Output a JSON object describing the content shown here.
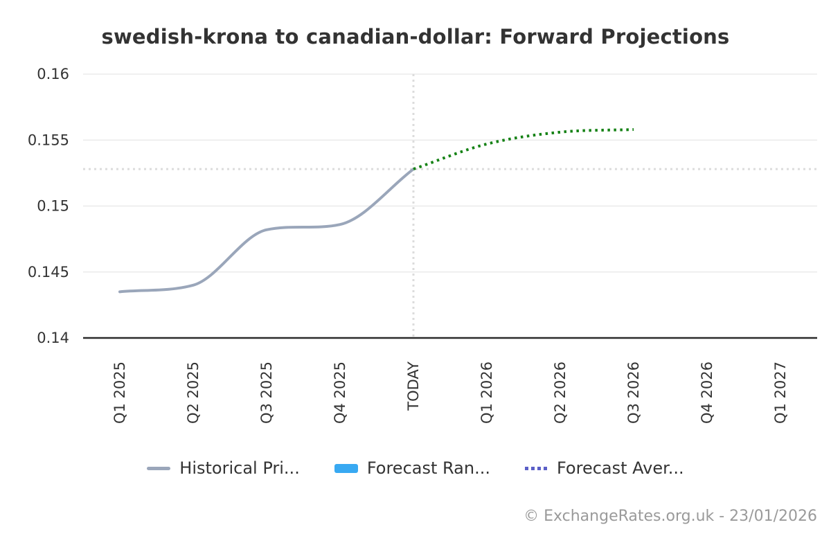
{
  "title": "swedish-krona to canadian-dollar: Forward Projections",
  "footer": {
    "text": "© ExchangeRates.org.uk - 23/01/2026"
  },
  "legend": {
    "position": "bottom",
    "items": [
      {
        "label": "Historical Pri...",
        "swatch": "solid-line",
        "color": "#9aa6ba"
      },
      {
        "label": "Forecast Ran...",
        "swatch": "filled-rect",
        "color": "#38a9f2"
      },
      {
        "label": "Forecast Aver...",
        "swatch": "dotted-line",
        "color": "#5b5fc7"
      }
    ]
  },
  "chart_data": {
    "type": "line",
    "title": "swedish-krona to canadian-dollar: Forward Projections",
    "xlabel": "",
    "ylabel": "",
    "categories": [
      "Q1 2025",
      "Q2 2025",
      "Q3 2025",
      "Q4 2025",
      "TODAY",
      "Q1 2026",
      "Q2 2026",
      "Q3 2026",
      "Q4 2026",
      "Q1 2027"
    ],
    "ylim": [
      0.14,
      0.16
    ],
    "y_ticks": [
      "0.14",
      "0.145",
      "0.15",
      "0.155",
      "0.16"
    ],
    "grid": true,
    "legend_position": "bottom",
    "today_category": "TODAY",
    "current_rate": 0.1528,
    "series": [
      {
        "name": "Historical Price",
        "style": "solid",
        "color": "#9aa6ba",
        "points": [
          {
            "category": "Q1 2025",
            "value": 0.1435
          },
          {
            "category": "Q2 2025",
            "value": 0.144
          },
          {
            "category": "Q3 2025",
            "value": 0.1482
          },
          {
            "category": "Q4 2025",
            "value": 0.1486
          },
          {
            "category": "TODAY",
            "value": 0.1528
          }
        ]
      },
      {
        "name": "Forecast Average",
        "style": "dotted",
        "color": "#168216",
        "points": [
          {
            "category": "TODAY",
            "value": 0.1528
          },
          {
            "category": "Q1 2026",
            "value": 0.1547
          },
          {
            "category": "Q2 2026",
            "value": 0.1556
          },
          {
            "category": "Q3 2026",
            "value": 0.1558
          }
        ]
      }
    ],
    "axis_colors": {
      "grid": "#e6e6e6",
      "axis": "#2b2b2b",
      "reference_dotted": "#dcdcdc",
      "tick_label": "#333333"
    }
  }
}
